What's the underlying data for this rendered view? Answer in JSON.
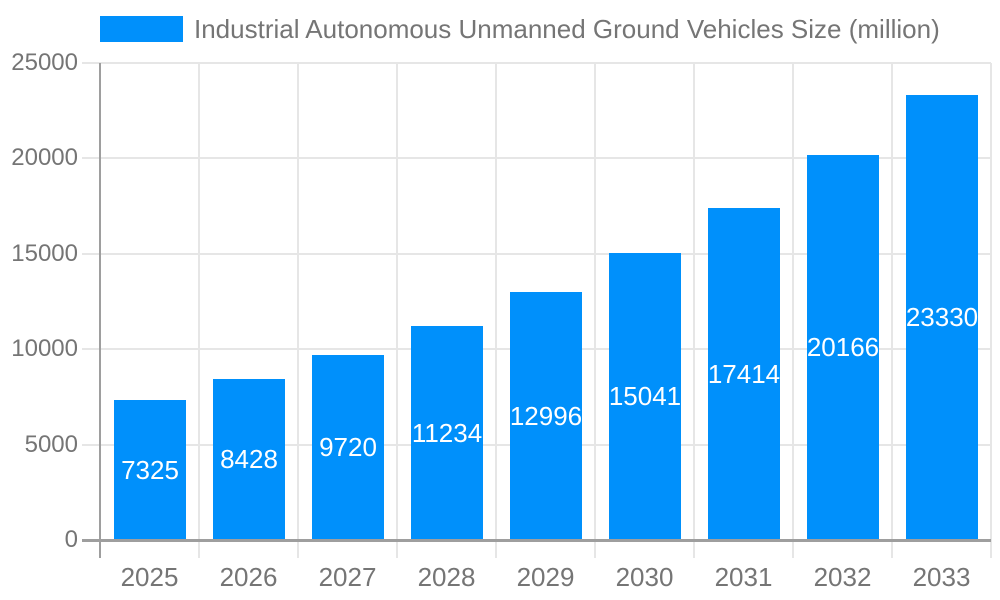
{
  "chart_data": {
    "type": "bar",
    "title": "",
    "legend": "Industrial Autonomous Unmanned Ground Vehicles Size (million)",
    "legend_position": "top",
    "categories": [
      "2025",
      "2026",
      "2027",
      "2028",
      "2029",
      "2030",
      "2031",
      "2032",
      "2033"
    ],
    "values": [
      7325,
      8428,
      9720,
      11234,
      12996,
      15041,
      17414,
      20166,
      23330
    ],
    "xlabel": "",
    "ylabel": "",
    "ylim": [
      0,
      25000
    ],
    "yticks": [
      0,
      5000,
      10000,
      15000,
      20000,
      25000
    ],
    "grid": true,
    "value_labels": "inside-center-white",
    "colors": {
      "bar": "#0090FB",
      "grid": "#e6e6e6",
      "axis": "#9e9e9e",
      "tick_text": "#757575",
      "legend_text": "#757575",
      "value_label": "#ffffff",
      "background": "#ffffff"
    }
  }
}
